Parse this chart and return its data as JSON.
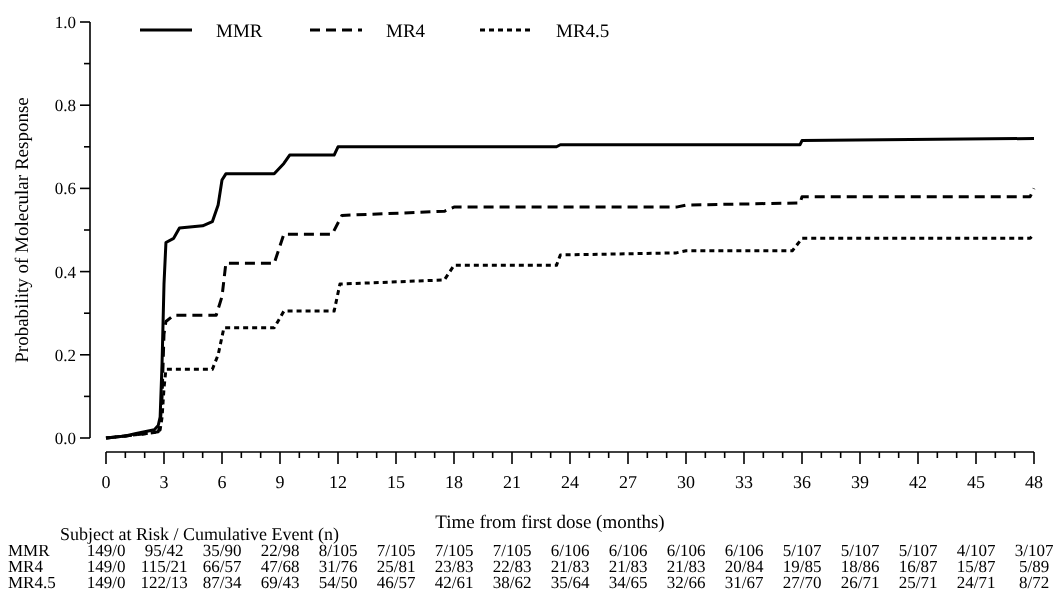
{
  "chart_data": {
    "type": "line",
    "xlabel": "Time from first dose (months)",
    "ylabel": "Probability of Molecular Response",
    "xlim": [
      0,
      48
    ],
    "ylim": [
      0,
      1
    ],
    "xticks": [
      0,
      {
        "value": 1,
        "label": null
      },
      {
        "value": 2,
        "label": null
      },
      3,
      {
        "value": 4,
        "label": null
      },
      {
        "value": 5,
        "label": null
      },
      6,
      {
        "value": 7,
        "label": null
      },
      {
        "value": 8,
        "label": null
      },
      9,
      {
        "value": 10,
        "label": null
      },
      {
        "value": 11,
        "label": null
      },
      12,
      {
        "value": 13,
        "label": null
      },
      {
        "value": 14,
        "label": null
      },
      15,
      {
        "value": 16,
        "label": null
      },
      {
        "value": 17,
        "label": null
      },
      18,
      {
        "value": 19,
        "label": null
      },
      {
        "value": 20,
        "label": null
      },
      21,
      {
        "value": 22,
        "label": null
      },
      {
        "value": 23,
        "label": null
      },
      24,
      {
        "value": 25,
        "label": null
      },
      {
        "value": 26,
        "label": null
      },
      27,
      {
        "value": 28,
        "label": null
      },
      {
        "value": 29,
        "label": null
      },
      30,
      {
        "value": 31,
        "label": null
      },
      {
        "value": 32,
        "label": null
      },
      33,
      {
        "value": 34,
        "label": null
      },
      {
        "value": 35,
        "label": null
      },
      36,
      {
        "value": 37,
        "label": null
      },
      {
        "value": 38,
        "label": null
      },
      39,
      {
        "value": 40,
        "label": null
      },
      {
        "value": 41,
        "label": null
      },
      42,
      {
        "value": 43,
        "label": null
      },
      {
        "value": 44,
        "label": null
      },
      45,
      {
        "value": 46,
        "label": null
      },
      {
        "value": 47,
        "label": null
      },
      48
    ],
    "yticks": [
      {
        "value": 0,
        "label": "0.0"
      },
      {
        "value": 0.1,
        "label": null
      },
      {
        "value": 0.2,
        "label": "0.2"
      },
      {
        "value": 0.3,
        "label": null
      },
      {
        "value": 0.4,
        "label": "0.4"
      },
      {
        "value": 0.5,
        "label": null
      },
      {
        "value": 0.6,
        "label": "0.6"
      },
      {
        "value": 0.7,
        "label": null
      },
      {
        "value": 0.8,
        "label": "0.8"
      },
      {
        "value": 0.9,
        "label": null
      },
      {
        "value": 1,
        "label": "1.0"
      }
    ],
    "grid": false,
    "legend": "top",
    "series": [
      {
        "name": "MMR",
        "color": "#000000",
        "line_style": "solid",
        "x": [
          0,
          1,
          1.5,
          2,
          2.5,
          2.7,
          2.8,
          2.9,
          3,
          3.1,
          3.5,
          3.8,
          5,
          5.5,
          5.8,
          6,
          6.2,
          8.7,
          9.2,
          9.5,
          11.8,
          12,
          23.3,
          23.5,
          35.9,
          36,
          48
        ],
        "values": [
          0,
          0.005,
          0.01,
          0.015,
          0.02,
          0.03,
          0.05,
          0.18,
          0.37,
          0.47,
          0.48,
          0.505,
          0.51,
          0.52,
          0.56,
          0.62,
          0.635,
          0.635,
          0.66,
          0.68,
          0.68,
          0.7,
          0.7,
          0.705,
          0.705,
          0.715,
          0.72
        ]
      },
      {
        "name": "MR4",
        "color": "#000000",
        "line_style": "dashed",
        "x": [
          0,
          1,
          2,
          2.7,
          2.8,
          2.9,
          3,
          3.1,
          3.5,
          5.7,
          6,
          6.2,
          8.7,
          9.2,
          11.7,
          12.2,
          17.5,
          18,
          29.5,
          30,
          35.9,
          36,
          47.8,
          48
        ],
        "values": [
          0,
          0.005,
          0.01,
          0.015,
          0.03,
          0.1,
          0.25,
          0.28,
          0.295,
          0.295,
          0.34,
          0.42,
          0.42,
          0.49,
          0.49,
          0.535,
          0.545,
          0.555,
          0.555,
          0.56,
          0.565,
          0.58,
          0.58,
          0.6
        ]
      },
      {
        "name": "MR4.5",
        "color": "#000000",
        "line_style": "dotted",
        "x": [
          0,
          1,
          2,
          2.7,
          2.8,
          2.9,
          3,
          3.1,
          5.5,
          5.8,
          6.1,
          8.7,
          9.2,
          11.8,
          12.1,
          17.5,
          18,
          23.3,
          23.5,
          29.5,
          30,
          35.5,
          36,
          47.8,
          48
        ],
        "values": [
          0,
          0.005,
          0.01,
          0.015,
          0.02,
          0.05,
          0.12,
          0.165,
          0.165,
          0.2,
          0.265,
          0.265,
          0.305,
          0.305,
          0.37,
          0.38,
          0.415,
          0.415,
          0.44,
          0.445,
          0.45,
          0.45,
          0.48,
          0.48,
          0.49
        ]
      }
    ],
    "annotations": [
      "Subject at Risk / Cumulative Event (n)",
      "MMR 149/0 95/42 35/90 22/98 8/105 7/105 7/105 7/105 6/106 6/106 6/106 6/106 5/107 5/107 5/107 4/107 3/107",
      "MR4 149/0 115/21 66/57 47/68 31/76 25/81 23/83 22/83 21/83 21/83 21/83 20/84 19/85 18/86 16/87 15/87 5/89",
      "MR4.5 149/0 122/13 87/34 69/43 54/50 46/57 42/61 38/62 35/64 34/65 32/66 31/67 27/70 26/71 25/71 24/71 8/72"
    ]
  }
}
